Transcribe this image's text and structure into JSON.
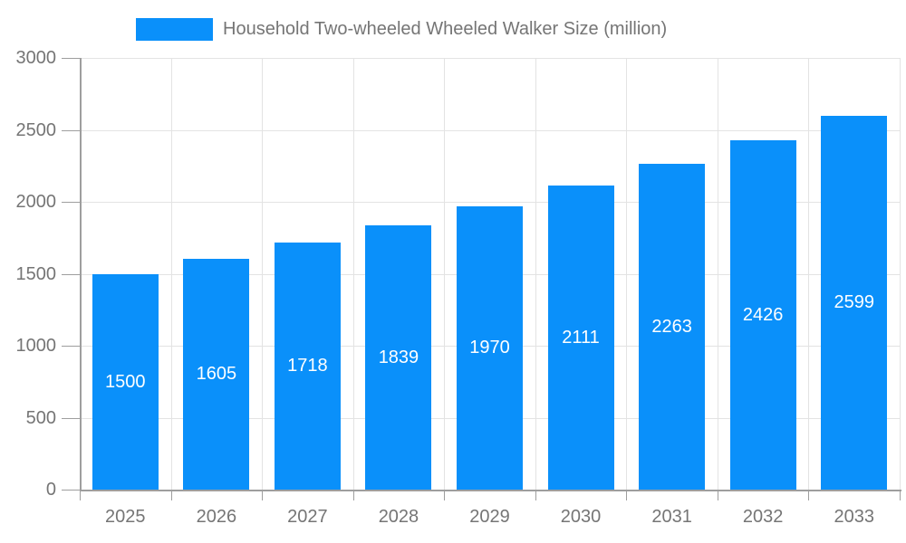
{
  "legend": {
    "label": "Household Two-wheeled Wheeled Walker Size (million)"
  },
  "chart_data": {
    "type": "bar",
    "title": "Household Two-wheeled Wheeled Walker Size (million)",
    "categories": [
      "2025",
      "2026",
      "2027",
      "2028",
      "2029",
      "2030",
      "2031",
      "2032",
      "2033"
    ],
    "values": [
      1500,
      1605,
      1718,
      1839,
      1970,
      2111,
      2263,
      2426,
      2599
    ],
    "value_labels": [
      "1500",
      "1605",
      "1718",
      "1839",
      "1970",
      "2111",
      "2263",
      "2426",
      "2599"
    ],
    "xlabel": "",
    "ylabel": "",
    "ylim": [
      0,
      3000
    ],
    "yticks": [
      0,
      500,
      1000,
      1500,
      2000,
      2500,
      3000
    ],
    "ytick_labels": [
      "0",
      "500",
      "1000",
      "1500",
      "2000",
      "2500",
      "3000"
    ],
    "grid": true,
    "legend_position": "top",
    "colors": {
      "bar": "#0a90fa",
      "value_label": "#ffffff",
      "axis_text": "#757575",
      "gridline": "#e3e3e3",
      "axis_line": "#9e9e9e",
      "background": "#ffffff"
    }
  }
}
